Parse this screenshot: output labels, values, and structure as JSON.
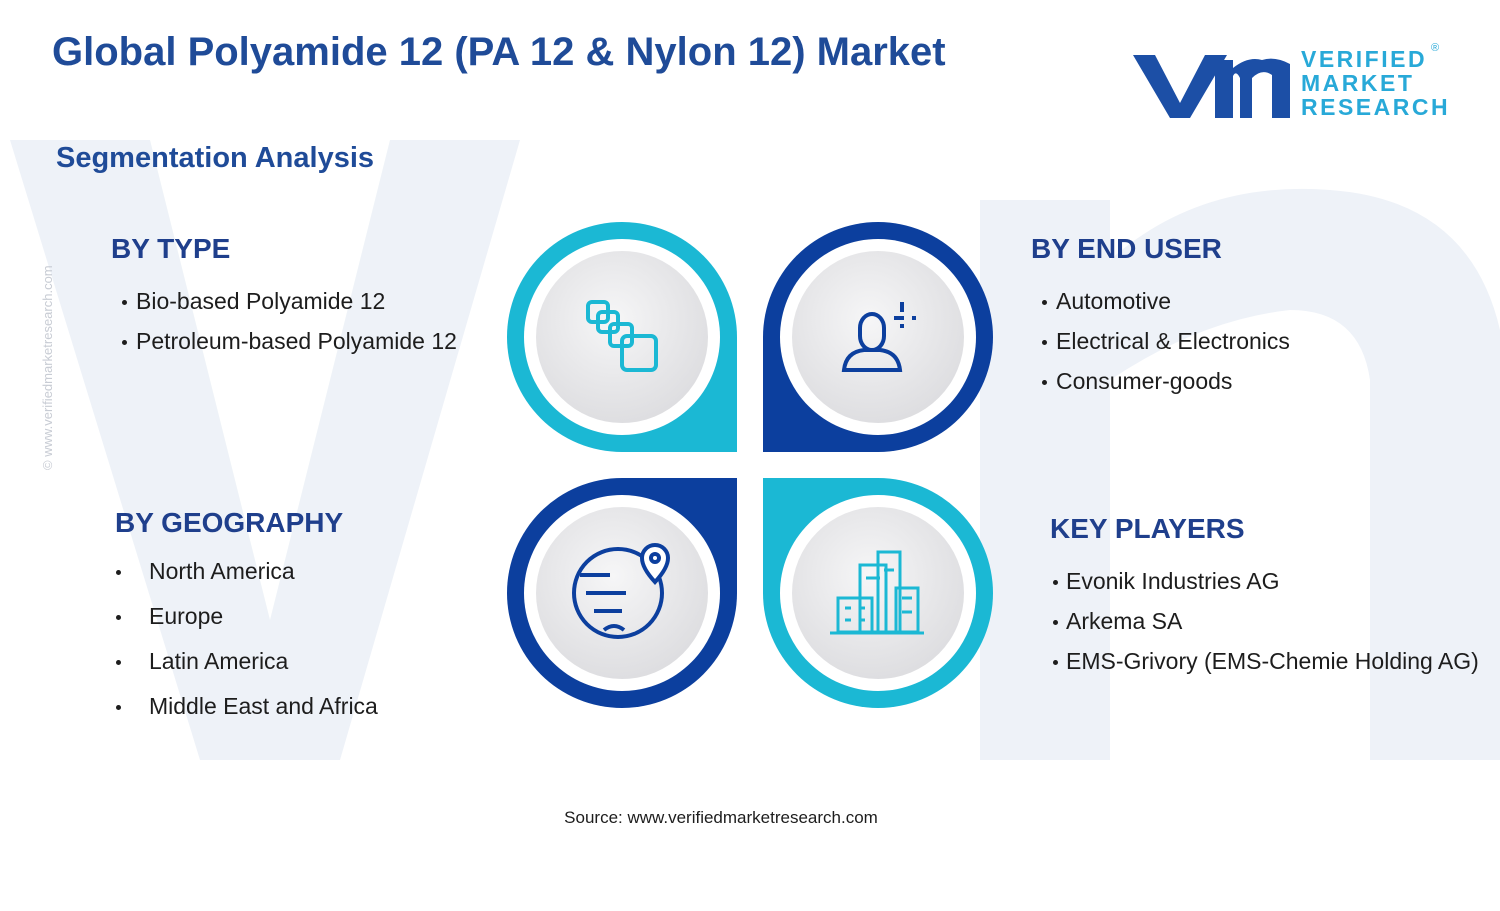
{
  "header": {
    "title": "Global Polyamide 12 (PA 12 & Nylon 12) Market",
    "logo": {
      "line1": "VERIFIED",
      "line2": "MARKET",
      "line3": "RESEARCH",
      "mark": "®"
    }
  },
  "subtitle": "Segmentation Analysis",
  "segments": [
    {
      "heading": "BY TYPE",
      "items": [
        "Bio-based Polyamide 12",
        "Petroleum-based Polyamide 12"
      ]
    },
    {
      "heading": "BY END USER",
      "items": [
        "Automotive",
        "Electrical & Electronics",
        "Consumer-goods"
      ]
    },
    {
      "heading": "BY GEOGRAPHY",
      "items": [
        "North America",
        "Europe",
        "Latin America",
        "Middle East and Africa"
      ]
    },
    {
      "heading": "KEY PLAYERS",
      "items": [
        "Evonik Industries AG",
        "Arkema SA",
        "EMS-Grivory (EMS-Chemie Holding AG)"
      ]
    }
  ],
  "source": "Source: www.verifiedmarketresearch.com",
  "watermark": "© www.verifiedmarketresearch.com"
}
